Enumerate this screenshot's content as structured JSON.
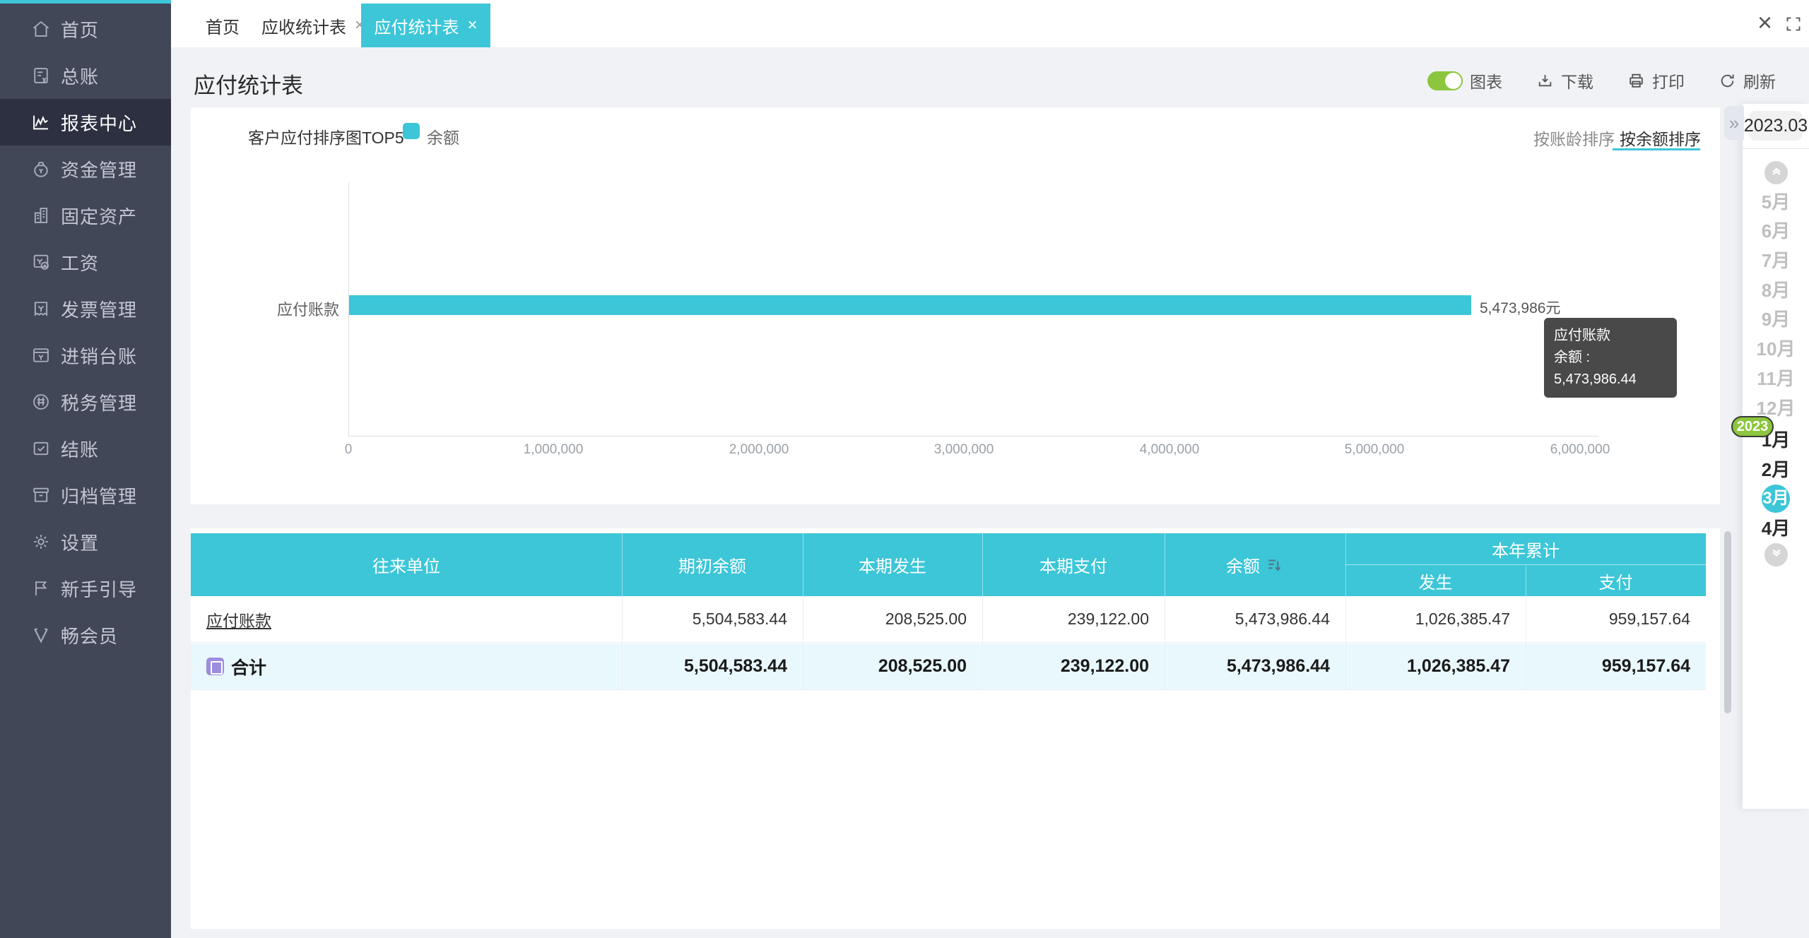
{
  "tabs": {
    "items": [
      {
        "label": "首页"
      },
      {
        "label": "应收统计表",
        "close": "×"
      },
      {
        "label": "应付统计表",
        "close": "×"
      }
    ]
  },
  "window": {
    "close": "×"
  },
  "sidebar": {
    "items": [
      {
        "label": "首页"
      },
      {
        "label": "总账"
      },
      {
        "label": "报表中心"
      },
      {
        "label": "资金管理"
      },
      {
        "label": "固定资产"
      },
      {
        "label": "工资"
      },
      {
        "label": "发票管理"
      },
      {
        "label": "进销台账"
      },
      {
        "label": "税务管理"
      },
      {
        "label": "结账"
      },
      {
        "label": "归档管理"
      },
      {
        "label": "设置"
      },
      {
        "label": "新手引导"
      },
      {
        "label": "畅会员"
      }
    ]
  },
  "page": {
    "title": "应付统计表",
    "toolbar": {
      "chart_toggle_label": "图表",
      "download_label": "下载",
      "print_label": "打印",
      "refresh_label": "刷新"
    }
  },
  "chart_card": {
    "title": "客户应付排序图TOP5",
    "legend_label": "余额",
    "sort_age_label": "按账龄排序",
    "sort_balance_label": "按余额排序",
    "tooltip": {
      "title": "应付账款",
      "text": "余额 : 5,473,986.44"
    }
  },
  "chart_data": {
    "type": "bar",
    "orientation": "horizontal",
    "title": "客户应付排序图TOP5",
    "categories": [
      "应付账款"
    ],
    "series": [
      {
        "name": "余额",
        "values": [
          5473986.44
        ]
      }
    ],
    "value_label": "5,473,986元",
    "xlim": [
      0,
      6000000
    ],
    "x_ticks": [
      "0",
      "1,000,000",
      "2,000,000",
      "3,000,000",
      "4,000,000",
      "5,000,000",
      "6,000,000"
    ],
    "bar_color": "#3cc6d8",
    "legend_position": "top",
    "grid": false
  },
  "table": {
    "columns": {
      "unit": "往来单位",
      "opening": "期初余额",
      "current_incurred": "本期发生",
      "current_paid": "本期支付",
      "balance": "余额",
      "ytd_group": "本年累计",
      "ytd_incurred": "发生",
      "ytd_paid": "支付"
    },
    "rows": [
      {
        "unit": "应付账款",
        "opening": "5,504,583.44",
        "current_incurred": "208,525.00",
        "current_paid": "239,122.00",
        "balance": "5,473,986.44",
        "ytd_incurred": "1,026,385.47",
        "ytd_paid": "959,157.64"
      }
    ],
    "total_row": {
      "unit": "合计",
      "opening": "5,504,583.44",
      "current_incurred": "208,525.00",
      "current_paid": "239,122.00",
      "balance": "5,473,986.44",
      "ytd_incurred": "1,026,385.47",
      "ytd_paid": "959,157.64"
    }
  },
  "period_panel": {
    "collapse_icon": "»",
    "current_period": "2023.03",
    "year_badge": "2023",
    "months": [
      {
        "label": "5月",
        "state": "muted"
      },
      {
        "label": "6月",
        "state": "muted"
      },
      {
        "label": "7月",
        "state": "muted"
      },
      {
        "label": "8月",
        "state": "muted"
      },
      {
        "label": "9月",
        "state": "muted"
      },
      {
        "label": "10月",
        "state": "muted"
      },
      {
        "label": "11月",
        "state": "muted"
      },
      {
        "label": "12月",
        "state": "muted"
      },
      {
        "label": "1月",
        "state": "normal"
      },
      {
        "label": "2月",
        "state": "normal"
      },
      {
        "label": "3月",
        "state": "active"
      },
      {
        "label": "4月",
        "state": "normal"
      }
    ]
  },
  "colors": {
    "accent_cyan": "#3cc6d8",
    "toggle_green": "#8cc63e",
    "sidebar_bg": "#424757",
    "sidebar_active_bg": "#2c3040",
    "content_bg": "#f0f2f5",
    "tooltip_bg": "#3a3a3a",
    "total_row_bg": "#e9f8fd",
    "year_badge_green": "#8cc63e"
  }
}
